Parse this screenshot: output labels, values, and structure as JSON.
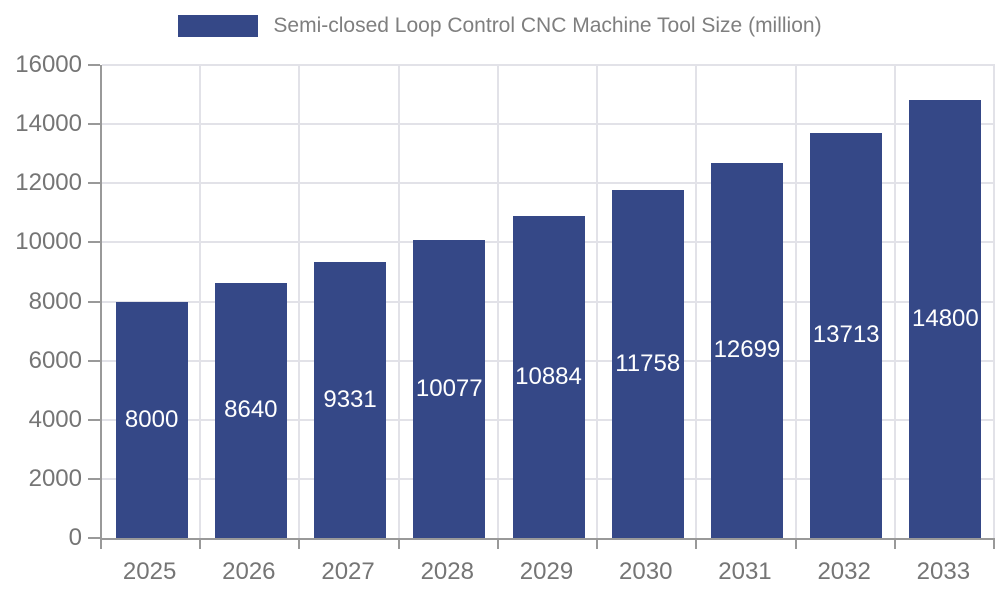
{
  "legend": {
    "label": "Semi-closed Loop Control CNC Machine Tool Size (million)"
  },
  "chart_data": {
    "type": "bar",
    "title": "Semi-closed Loop Control CNC Machine Tool Size (million)",
    "series_name": "Semi-closed Loop Control CNC Machine Tool Size (million)",
    "categories": [
      "2025",
      "2026",
      "2027",
      "2028",
      "2029",
      "2030",
      "2031",
      "2032",
      "2033"
    ],
    "values": [
      8000,
      8640,
      9331,
      10077,
      10884,
      11758,
      12699,
      13713,
      14800
    ],
    "xlabel": "",
    "ylabel": "",
    "ylim": [
      0,
      16000
    ],
    "yticks": [
      0,
      2000,
      4000,
      6000,
      8000,
      10000,
      12000,
      14000,
      16000
    ],
    "grid": true,
    "legend_position": "top-center",
    "value_label_position": "inside-center",
    "colors": {
      "bar": "#354887",
      "bar_value_label": "#ffffff",
      "axis": "#999999",
      "grid": "#e2e2e8",
      "tick_label": "#757575",
      "legend_text": "#7f7f7f",
      "background": "#ffffff"
    }
  }
}
